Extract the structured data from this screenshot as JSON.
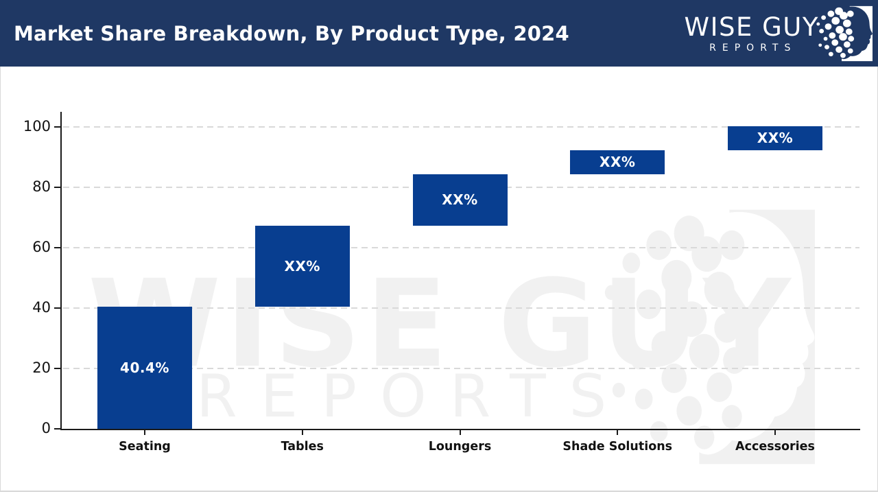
{
  "header": {
    "title": "Market Share Breakdown, By Product Type, 2024",
    "bg_color": "#1f3864"
  },
  "logo": {
    "line1": "WISE GUY",
    "line2": "REPORTS"
  },
  "watermark": {
    "line1": "WISE GUY",
    "line2": "REPORTS"
  },
  "chart_data": {
    "type": "bar",
    "subtype": "waterfall",
    "title": "Market Share Breakdown, By Product Type, 2024",
    "categories": [
      "Seating",
      "Tables",
      "Loungers",
      "Shade Solutions",
      "Accessories"
    ],
    "series": [
      {
        "name": "Market share (%)",
        "starts": [
          0,
          40.4,
          67.3,
          84.4,
          92.3
        ],
        "ends": [
          40.4,
          67.3,
          84.4,
          92.3,
          100.2
        ],
        "labels": [
          "40.4%",
          "XX%",
          "XX%",
          "XX%",
          "XX%"
        ]
      }
    ],
    "xlabel": "",
    "ylabel": "",
    "ylim": [
      0,
      105
    ],
    "yticks": [
      0,
      20,
      40,
      60,
      80,
      100
    ],
    "grid": "horizontal-dashed",
    "legend": "none",
    "bar_color": "#083e90",
    "bar_label_color": "#ffffff",
    "grid_color": "#d9d9d9"
  }
}
